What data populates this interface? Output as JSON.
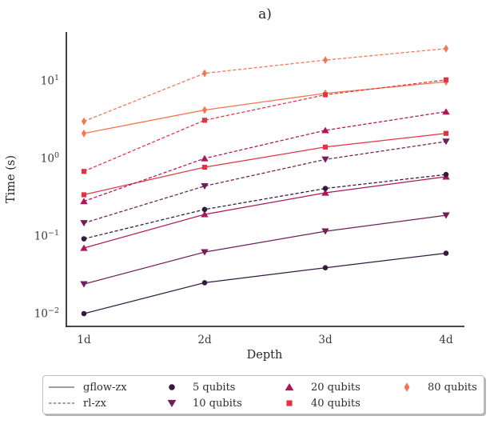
{
  "chart_data": {
    "type": "line",
    "title": "a)",
    "xlabel": "Depth",
    "ylabel": "Time (s)",
    "x_categories": [
      "1d",
      "2d",
      "3d",
      "4d"
    ],
    "y_scale": "log",
    "y_tick_exponents": [
      1,
      0,
      -1,
      -2
    ],
    "ylim": [
      0.0068,
      42
    ],
    "grid": false,
    "legend_position": "bottom-outside",
    "colors": {
      "qubits_5": "#35193e",
      "qubits_10": "#701f57",
      "qubits_20": "#ad1759",
      "qubits_40": "#e13342",
      "qubits_80": "#f37651",
      "legend_line": "#666666",
      "axis": "#2b2b2b",
      "tick_label": "#3a3a3a"
    },
    "legend": {
      "line_styles": [
        {
          "label": "gflow-zx",
          "style": "solid"
        },
        {
          "label": "rl-zx",
          "style": "dashed"
        }
      ],
      "qubit_markers": [
        {
          "label": "5 qubits",
          "marker": "circle",
          "color": "#35193e"
        },
        {
          "label": "10 qubits",
          "marker": "triangle-down",
          "color": "#701f57"
        },
        {
          "label": "20 qubits",
          "marker": "triangle-up",
          "color": "#ad1759"
        },
        {
          "label": "40 qubits",
          "marker": "square",
          "color": "#e13342"
        },
        {
          "label": "80 qubits",
          "marker": "diamond",
          "color": "#f37651"
        }
      ]
    },
    "series": [
      {
        "name": "gflow-zx-5-qubits",
        "method": "gflow-zx",
        "qubits": 5,
        "style": "solid",
        "marker": "circle",
        "color": "#35193e",
        "values": [
          0.01,
          0.025,
          0.039,
          0.06
        ]
      },
      {
        "name": "gflow-zx-10-qubits",
        "method": "gflow-zx",
        "qubits": 10,
        "style": "solid",
        "marker": "triangle-down",
        "color": "#701f57",
        "values": [
          0.024,
          0.062,
          0.115,
          0.185
        ]
      },
      {
        "name": "gflow-zx-20-qubits",
        "method": "gflow-zx",
        "qubits": 20,
        "style": "solid",
        "marker": "triangle-up",
        "color": "#ad1759",
        "values": [
          0.07,
          0.19,
          0.36,
          0.58
        ]
      },
      {
        "name": "gflow-zx-40-qubits",
        "method": "gflow-zx",
        "qubits": 40,
        "style": "solid",
        "marker": "square",
        "color": "#e13342",
        "values": [
          0.34,
          0.77,
          1.4,
          2.1
        ]
      },
      {
        "name": "gflow-zx-80-qubits",
        "method": "gflow-zx",
        "qubits": 80,
        "style": "solid",
        "marker": "diamond",
        "color": "#f37651",
        "values": [
          2.1,
          4.2,
          6.9,
          9.7
        ]
      },
      {
        "name": "rl-zx-5-qubits",
        "method": "rl-zx",
        "qubits": 5,
        "style": "dashed",
        "marker": "circle",
        "color": "#35193e",
        "values": [
          0.092,
          0.22,
          0.41,
          0.62
        ]
      },
      {
        "name": "rl-zx-10-qubits",
        "method": "rl-zx",
        "qubits": 10,
        "style": "dashed",
        "marker": "triangle-down",
        "color": "#701f57",
        "values": [
          0.147,
          0.44,
          0.97,
          1.65
        ]
      },
      {
        "name": "rl-zx-20-qubits",
        "method": "rl-zx",
        "qubits": 20,
        "style": "dashed",
        "marker": "triangle-up",
        "color": "#ad1759",
        "values": [
          0.28,
          1.0,
          2.3,
          4.0
        ]
      },
      {
        "name": "rl-zx-40-qubits",
        "method": "rl-zx",
        "qubits": 40,
        "style": "dashed",
        "marker": "square",
        "color": "#e13342",
        "values": [
          0.68,
          3.1,
          6.6,
          10.3
        ]
      },
      {
        "name": "rl-zx-80-qubits",
        "method": "rl-zx",
        "qubits": 80,
        "style": "dashed",
        "marker": "diamond",
        "color": "#f37651",
        "values": [
          3.0,
          12.5,
          18.5,
          26.0
        ]
      }
    ]
  }
}
